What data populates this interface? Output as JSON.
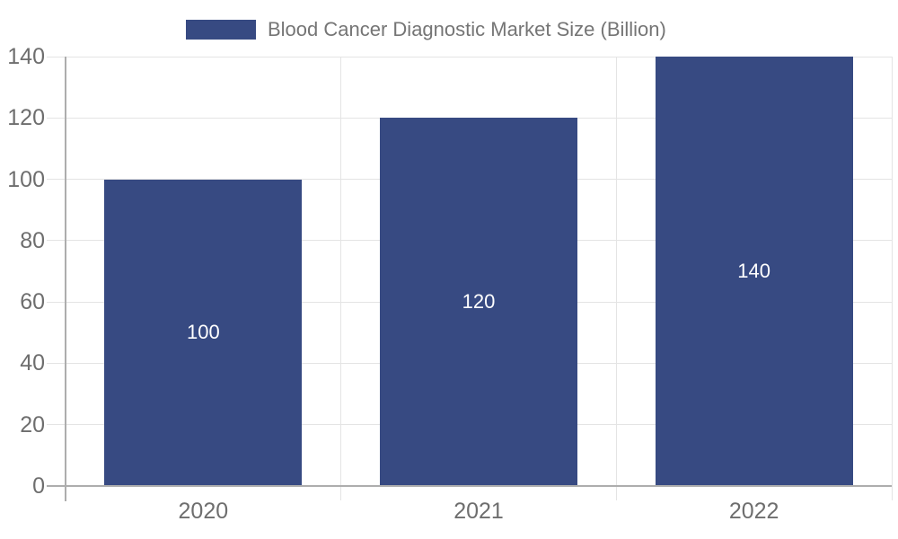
{
  "legend": {
    "label": "Blood Cancer Diagnostic Market Size (Billion)"
  },
  "chart_data": {
    "type": "bar",
    "title": "Blood Cancer Diagnostic Market Size (Billion)",
    "categories": [
      "2020",
      "2021",
      "2022"
    ],
    "values": [
      100,
      120,
      140
    ],
    "data_labels": [
      "100",
      "120",
      "140"
    ],
    "xlabel": "",
    "ylabel": "",
    "ylim": [
      0,
      140
    ],
    "yticks": [
      0,
      20,
      40,
      60,
      80,
      100,
      120,
      140
    ],
    "ytick_labels": [
      "0",
      "20",
      "40",
      "60",
      "80",
      "100",
      "120",
      "140"
    ],
    "grid": true,
    "legend_position": "top",
    "colors": {
      "bar": "#374a82",
      "bar_label_text": "#ffffff",
      "legend_text": "#757575",
      "axis_text": "#6e6e6e",
      "gridline": "#e4e4e4",
      "axis_line": "#adadad",
      "background": "#ffffff"
    }
  }
}
